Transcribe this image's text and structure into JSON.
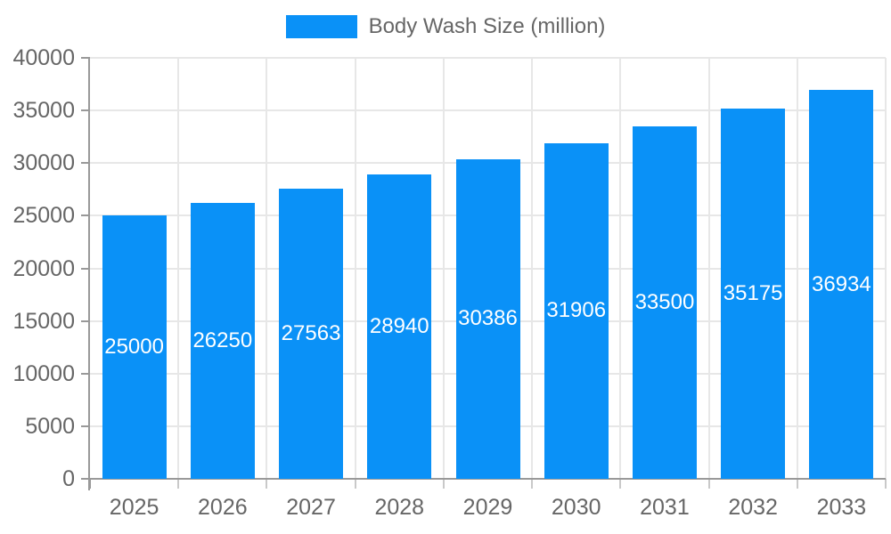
{
  "chart_data": {
    "type": "bar",
    "title": "",
    "legend": {
      "label": "Body Wash Size (million)",
      "position": "top"
    },
    "categories": [
      "2025",
      "2026",
      "2027",
      "2028",
      "2029",
      "2030",
      "2031",
      "2032",
      "2033"
    ],
    "series": [
      {
        "name": "Body Wash Size (million)",
        "values": [
          25000,
          26250,
          27563,
          28940,
          30386,
          31906,
          33500,
          35175,
          36934
        ]
      }
    ],
    "ylim": [
      0,
      40000
    ],
    "ytick_step": 5000,
    "ytick_labels": [
      "0",
      "5000",
      "10000",
      "15000",
      "20000",
      "25000",
      "30000",
      "35000",
      "40000"
    ],
    "grid": true,
    "value_labels": {
      "visible": true,
      "position": "center-of-bar",
      "color": "#ffffff"
    },
    "colors": {
      "bar": "#0a91f7",
      "axis": "#999999",
      "grid": "#e7e7e7",
      "x_tick": "#c9c9c9",
      "tick_label": "#666666",
      "legend_text": "#666666",
      "background": "#ffffff"
    }
  }
}
